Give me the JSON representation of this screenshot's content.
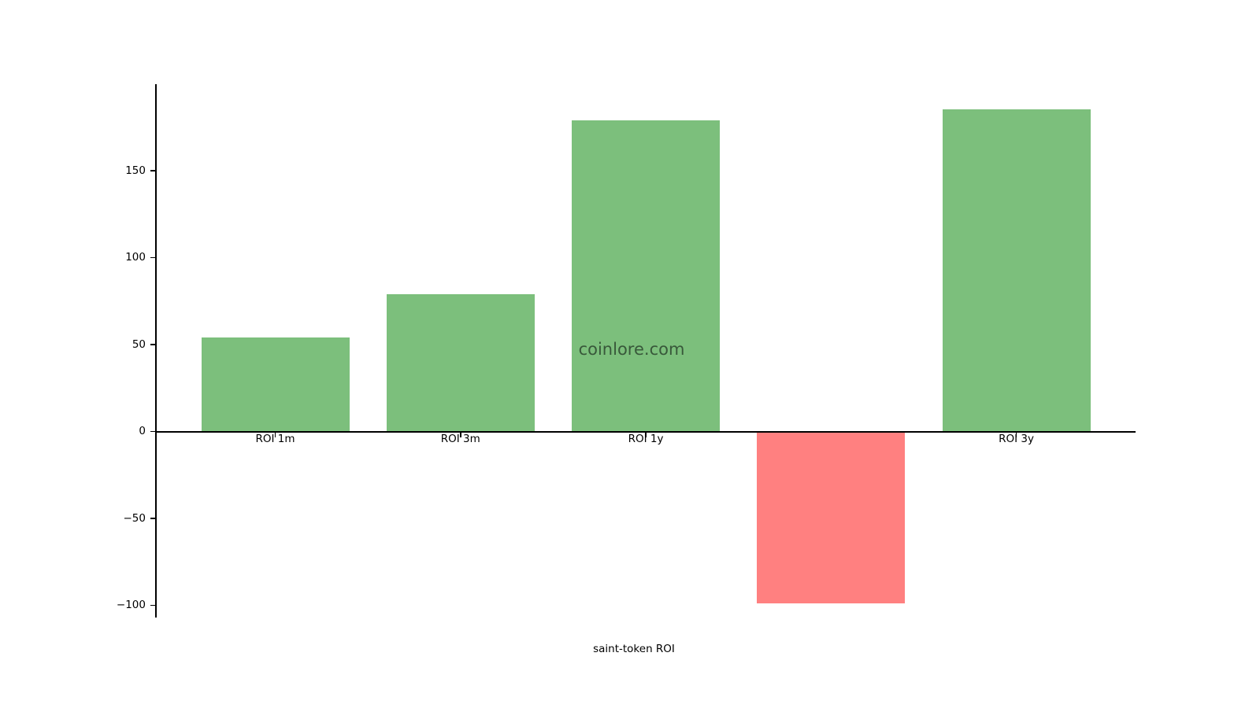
{
  "page": {
    "background": "#ffffff"
  },
  "watermark": {
    "text": "coinlore.com"
  },
  "chart_data": {
    "type": "bar",
    "title": "saint-token ROI",
    "categories": [
      "ROI 1m",
      "ROI 3m",
      "ROI 1y",
      "",
      "ROI 3y"
    ],
    "values": [
      54,
      79,
      179,
      -99,
      185
    ],
    "yticks": [
      150,
      100,
      50,
      0,
      -50,
      -100
    ],
    "ytick_labels": [
      "150",
      "100",
      "50",
      "0",
      "−50",
      "−100"
    ],
    "ylim": [
      -107,
      200
    ],
    "colors": {
      "positive": "#7cbf7c",
      "negative": "#ff8080",
      "axis": "#000000"
    },
    "xlabel": "",
    "ylabel": "",
    "grid": false,
    "legend": "none",
    "layout_notes": "x tick label of 4th bar hidden behind negative bar; x axis drawn at y=0"
  }
}
